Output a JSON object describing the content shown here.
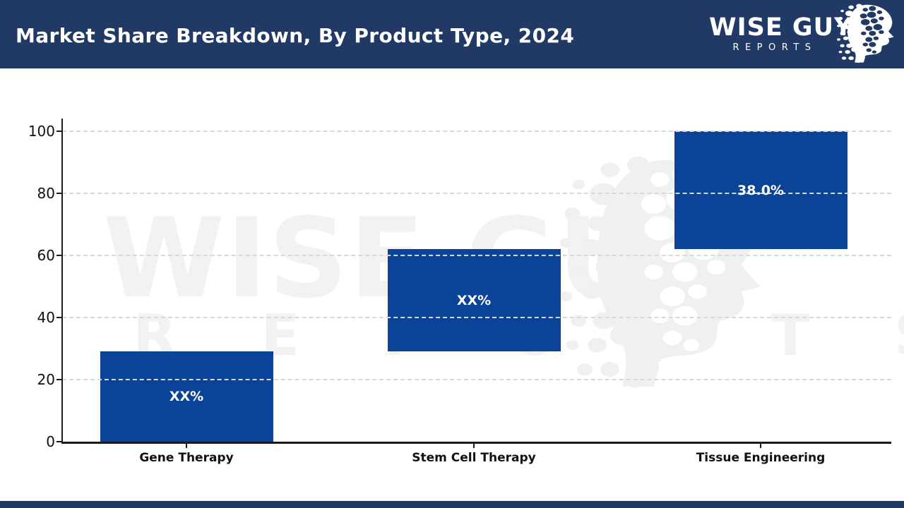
{
  "header": {
    "title": "Market Share Breakdown, By Product Type, 2024",
    "logo": {
      "line1": "WISE GUY",
      "line2": "REPORTS"
    }
  },
  "watermark": {
    "line1": "WISE GUY",
    "line2": "R E P O R T S"
  },
  "chart_data": {
    "type": "bar",
    "subtype": "waterfall",
    "title": "Market Share Breakdown, By Product Type, 2024",
    "categories": [
      "Gene Therapy",
      "Stem Cell Therapy",
      "Tissue Engineering"
    ],
    "segments": [
      {
        "category": "Gene Therapy",
        "start": 0,
        "end": 29,
        "label": "XX%"
      },
      {
        "category": "Stem Cell Therapy",
        "start": 29,
        "end": 62,
        "label": "XX%"
      },
      {
        "category": "Tissue Engineering",
        "start": 62,
        "end": 100,
        "label": "38.0%"
      }
    ],
    "values": [
      29,
      33,
      38
    ],
    "bar_labels": [
      "XX%",
      "XX%",
      "38.0%"
    ],
    "xlabel": "",
    "ylabel": "",
    "ylim": [
      0,
      100
    ],
    "yticks": [
      0,
      20,
      40,
      60,
      80,
      100
    ],
    "grid": "horizontal-dashed",
    "legend": "none",
    "bar_color": "#0b4399",
    "bar_label_color": "#ffffff",
    "grid_color": "#d9d9d9",
    "axis_color": "#1a1a1a"
  },
  "colors": {
    "header_bg": "#213965",
    "footer_bg": "#213965",
    "watermark": "#f2f2f4"
  }
}
